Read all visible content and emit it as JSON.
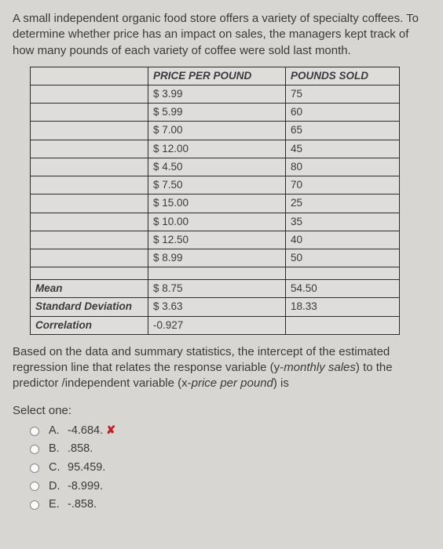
{
  "question": "A small independent organic food store offers a variety of specialty coffees. To determine whether price has an impact on sales, the managers kept track of how many pounds of each variety of coffee were sold last month.",
  "table": {
    "headers": {
      "col2": "PRICE PER POUND",
      "col3": "POUNDS SOLD"
    },
    "rows": [
      {
        "price": "$ 3.99",
        "pounds": "75"
      },
      {
        "price": "$ 5.99",
        "pounds": "60"
      },
      {
        "price": "$ 7.00",
        "pounds": "65"
      },
      {
        "price": "$ 12.00",
        "pounds": "45"
      },
      {
        "price": "$ 4.50",
        "pounds": "80"
      },
      {
        "price": "$ 7.50",
        "pounds": "70"
      },
      {
        "price": "$ 15.00",
        "pounds": "25"
      },
      {
        "price": "$ 10.00",
        "pounds": "35"
      },
      {
        "price": "$ 12.50",
        "pounds": "40"
      },
      {
        "price": "$ 8.99",
        "pounds": "50"
      }
    ],
    "stats": {
      "mean": {
        "label": "Mean",
        "price": "$ 8.75",
        "pounds": "54.50"
      },
      "sd": {
        "label": "Standard Deviation",
        "price": "$ 3.63",
        "pounds": "18.33"
      },
      "corr": {
        "label": "Correlation",
        "price": "-0.927",
        "pounds": ""
      }
    }
  },
  "followup_parts": {
    "p1": "Based on the data and summary statistics, the intercept of the estimated regression line that relates the response variable (y-",
    "p2": "monthly sales",
    "p3": ") to the predictor /independent variable (x-",
    "p4": "price per pound",
    "p5": ") is"
  },
  "select_label": "Select one:",
  "choices": [
    {
      "letter": "A.",
      "text": "-4.684.",
      "selected": true,
      "wrong": true
    },
    {
      "letter": "B.",
      "text": ".858.",
      "selected": false,
      "wrong": false
    },
    {
      "letter": "C.",
      "text": "95.459.",
      "selected": false,
      "wrong": false
    },
    {
      "letter": "D.",
      "text": "-8.999.",
      "selected": false,
      "wrong": false
    },
    {
      "letter": "E.",
      "text": "-.858.",
      "selected": false,
      "wrong": false
    }
  ],
  "wrong_symbol": "✘",
  "wrong_color": "#c62020"
}
